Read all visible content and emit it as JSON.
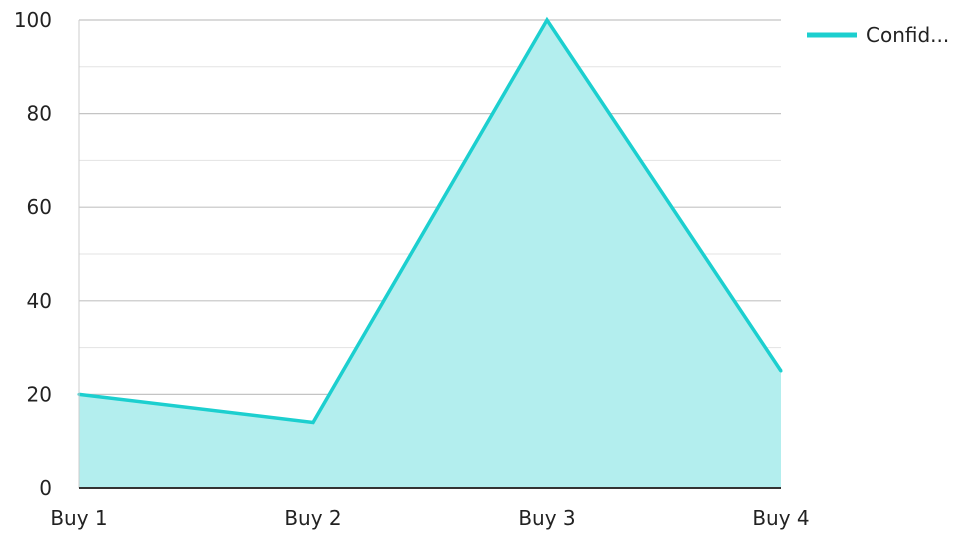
{
  "chart_data": {
    "type": "area",
    "categories": [
      "Buy 1",
      "Buy 2",
      "Buy 3",
      "Buy 4"
    ],
    "series": [
      {
        "name": "Confid...",
        "values": [
          20,
          14,
          100,
          25
        ],
        "line_color": "#1ccfcf",
        "fill_color": "#b3eeee"
      }
    ],
    "ylim": [
      0,
      100
    ],
    "yticks": [
      0,
      20,
      40,
      60,
      80,
      100
    ],
    "ytick_labels": [
      "0",
      "20",
      "40",
      "60",
      "80",
      "100"
    ],
    "grid": true,
    "legend_position": "top-right",
    "title": "",
    "xlabel": "",
    "ylabel": ""
  }
}
